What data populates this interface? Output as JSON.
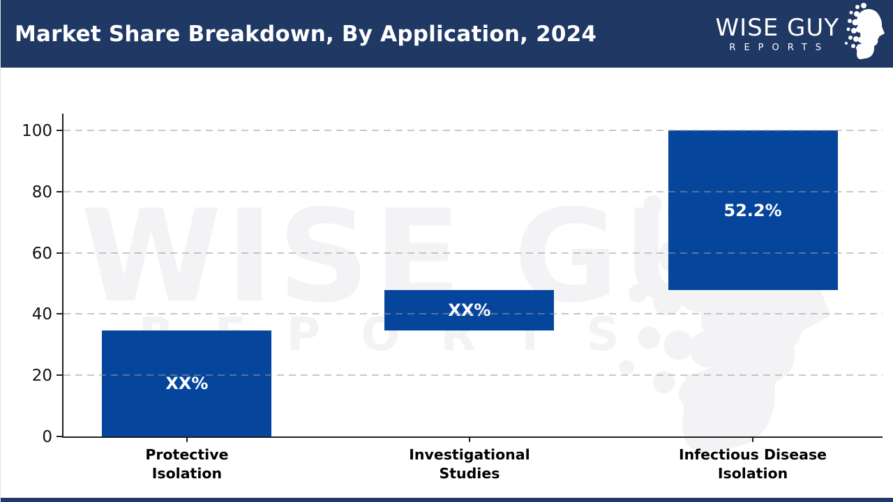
{
  "header": {
    "title": "Market Share Breakdown, By Application, 2024",
    "logo": {
      "name": "WISE GUY",
      "tagline": "REPORTS"
    }
  },
  "watermark": {
    "line1": "WISE GUY",
    "line2": "REPORTS"
  },
  "chart_data": {
    "type": "bar",
    "subtype": "waterfall",
    "title": "Market Share Breakdown, By Application, 2024",
    "categories": [
      [
        "Protective",
        "Isolation"
      ],
      [
        "Investigational",
        "Studies"
      ],
      [
        "Infectious Disease",
        "Isolation"
      ]
    ],
    "segments": [
      {
        "base": 0,
        "value": 34.7,
        "label": "XX%"
      },
      {
        "base": 34.7,
        "value": 13.1,
        "label": "XX%"
      },
      {
        "base": 47.8,
        "value": 52.2,
        "label": "52.2%"
      }
    ],
    "yticks": [
      0,
      20,
      40,
      60,
      80,
      100
    ],
    "ylim": [
      0,
      105.5
    ],
    "grid": {
      "axis": "y",
      "style": "dashed",
      "above_bars": true
    },
    "legend": "none",
    "bar_color": "#05459c",
    "bar_label_color": "#ffffff",
    "axis_color": "#1f1f1f",
    "tick_label_color": "#111111",
    "header_color": "#1f3864"
  }
}
